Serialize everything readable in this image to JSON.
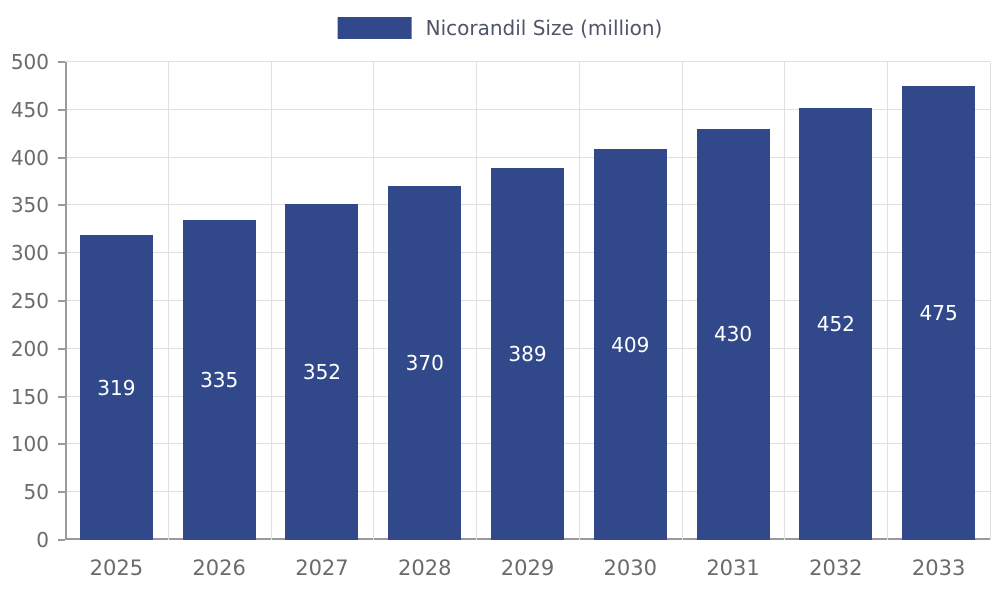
{
  "chart_data": {
    "type": "bar",
    "title": "",
    "legend": "Nicorandil Size (million)",
    "legend_position": "top",
    "categories": [
      "2025",
      "2026",
      "2027",
      "2028",
      "2029",
      "2030",
      "2031",
      "2032",
      "2033"
    ],
    "series": [
      {
        "name": "Nicorandil Size (million)",
        "values": [
          319,
          335,
          352,
          370,
          389,
          409,
          430,
          452,
          475
        ]
      }
    ],
    "xlabel": "",
    "ylabel": "",
    "ylim": [
      0,
      500
    ],
    "yticks": [
      0,
      50,
      100,
      150,
      200,
      250,
      300,
      350,
      400,
      450,
      500
    ],
    "grid": true,
    "value_labels": "inside-center",
    "colors": {
      "bar": "#31498A",
      "value_label": "#ffffff",
      "axis_line": "#9a9a9a",
      "gridline": "#e0e0e0",
      "tick_text": "#6b6b6b",
      "legend_text": "#4f5468"
    }
  }
}
